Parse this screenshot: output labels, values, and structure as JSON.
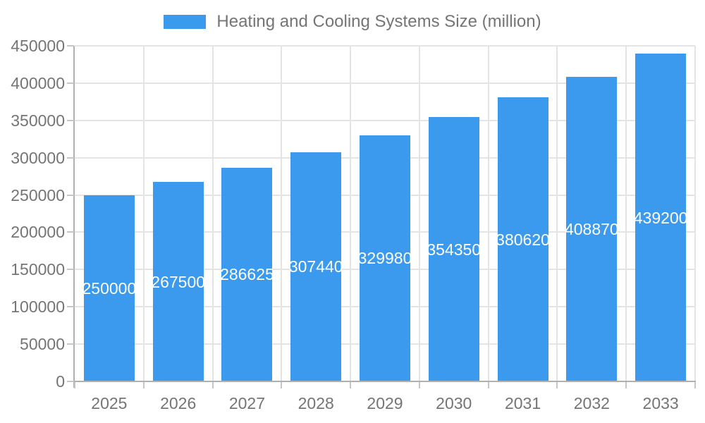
{
  "legend": {
    "label": "Heating and Cooling Systems Size (million)"
  },
  "colors": {
    "bar": "#3b99ee",
    "grid": "#e4e4e4",
    "axis": "#b0b0b0",
    "tick": "#c6c6c6",
    "tick_label": "#757575",
    "bar_value_label": "#ffffff",
    "background": "#ffffff"
  },
  "chart_data": {
    "type": "bar",
    "title": "Heating and Cooling Systems Size (million)",
    "categories": [
      "2025",
      "2026",
      "2027",
      "2028",
      "2029",
      "2030",
      "2031",
      "2032",
      "2033"
    ],
    "values": [
      250000,
      267500,
      286625,
      307440,
      329980,
      354350,
      380620,
      408870,
      439200
    ],
    "bar_labels": [
      "250000",
      "267500",
      "286625",
      "307440",
      "329980",
      "354350",
      "380620",
      "408870",
      "439200"
    ],
    "xlabel": "",
    "ylabel": "",
    "ylim": [
      0,
      450000
    ],
    "ytick_step": 50000,
    "yticks": [
      "0",
      "50000",
      "100000",
      "150000",
      "200000",
      "250000",
      "300000",
      "350000",
      "400000",
      "450000"
    ],
    "grid": true,
    "legend_position": "top",
    "value_labels": "centered-inside-bars"
  }
}
